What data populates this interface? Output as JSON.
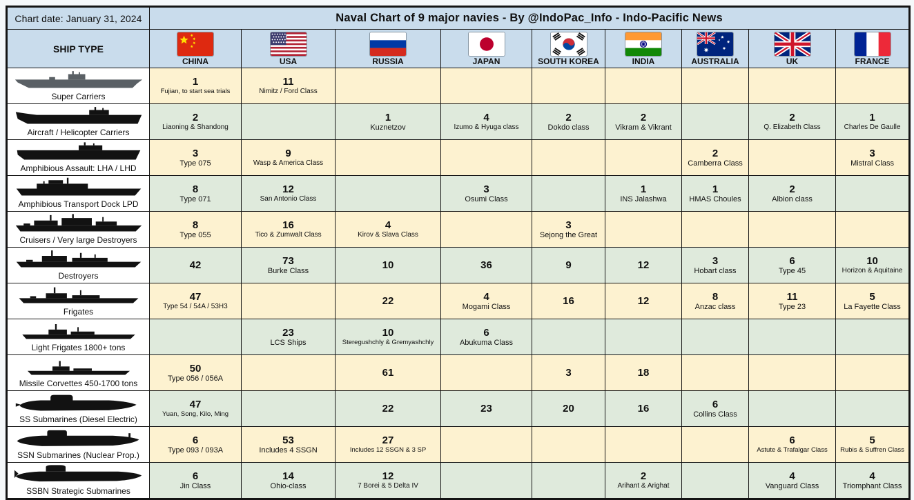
{
  "header": {
    "date_label": "Chart date: January 31, 2024",
    "title": "Naval Chart of 9 major navies - By @IndoPac_Info - Indo-Pacific News",
    "ship_type_label": "SHIP TYPE"
  },
  "countries": [
    {
      "name": "CHINA",
      "flag_icon": "china-flag-icon"
    },
    {
      "name": "USA",
      "flag_icon": "usa-flag-icon"
    },
    {
      "name": "RUSSIA",
      "flag_icon": "russia-flag-icon"
    },
    {
      "name": "JAPAN",
      "flag_icon": "japan-flag-icon"
    },
    {
      "name": "SOUTH KOREA",
      "flag_icon": "south-korea-flag-icon"
    },
    {
      "name": "INDIA",
      "flag_icon": "india-flag-icon"
    },
    {
      "name": "AUSTRALIA",
      "flag_icon": "australia-flag-icon"
    },
    {
      "name": "UK",
      "flag_icon": "uk-flag-icon"
    },
    {
      "name": "FRANCE",
      "flag_icon": "france-flag-icon"
    }
  ],
  "colors": {
    "header_bg": "#c9dcec",
    "row_yellow": "#fdf2d0",
    "row_green": "#dfeadc",
    "border": "#141414",
    "page_bg": "#f5f8fa",
    "super_carrier_gray": "#5a6065"
  },
  "chart_data": {
    "type": "table",
    "title": "Naval Chart of 9 major navies - By @IndoPac_Info - Indo-Pacific News",
    "date": "January 31, 2024",
    "columns": [
      "CHINA",
      "USA",
      "RUSSIA",
      "JAPAN",
      "SOUTH KOREA",
      "INDIA",
      "AUSTRALIA",
      "UK",
      "FRANCE"
    ],
    "rows": [
      {
        "ship_type": "Super Carriers",
        "silhouette": "super-carrier",
        "counts": [
          1,
          11,
          null,
          null,
          null,
          null,
          null,
          null,
          null
        ],
        "notes": [
          "Fujian, to start sea trials",
          "Nimitz / Ford Class",
          "",
          "",
          "",
          "",
          "",
          "",
          ""
        ]
      },
      {
        "ship_type": "Aircraft / Helicopter Carriers",
        "silhouette": "carrier",
        "counts": [
          2,
          null,
          1,
          4,
          2,
          2,
          null,
          2,
          1
        ],
        "notes": [
          "Liaoning & Shandong",
          "",
          "Kuznetzov",
          "Izumo & Hyuga class",
          "Dokdo class",
          "Vikram & Vikrant",
          "",
          "Q. Elizabeth Class",
          "Charles De Gaulle"
        ]
      },
      {
        "ship_type": "Amphibious Assault: LHA / LHD",
        "silhouette": "amphibious-assault",
        "counts": [
          3,
          9,
          null,
          null,
          null,
          null,
          2,
          null,
          3
        ],
        "notes": [
          "Type 075",
          "Wasp & America Class",
          "",
          "",
          "",
          "",
          "Camberra Class",
          "",
          "Mistral Class"
        ]
      },
      {
        "ship_type": "Amphibious Transport Dock LPD",
        "silhouette": "lpd",
        "counts": [
          8,
          12,
          null,
          3,
          null,
          1,
          1,
          2,
          null
        ],
        "notes": [
          "Type 071",
          "San Antonio Class",
          "",
          "Osumi Class",
          "",
          "INS Jalashwa",
          "HMAS Choules",
          "Albion class",
          ""
        ]
      },
      {
        "ship_type": "Cruisers / Very large Destroyers",
        "silhouette": "cruiser",
        "counts": [
          8,
          16,
          4,
          null,
          3,
          null,
          null,
          null,
          null
        ],
        "notes": [
          "Type 055",
          "Tico & Zumwalt Class",
          "Kirov & Slava Class",
          "",
          "Sejong the Great",
          "",
          "",
          "",
          ""
        ]
      },
      {
        "ship_type": "Destroyers",
        "silhouette": "destroyer",
        "counts": [
          42,
          73,
          10,
          36,
          9,
          12,
          3,
          6,
          10
        ],
        "notes": [
          "",
          "Burke Class",
          "",
          "",
          "",
          "",
          "Hobart class",
          "Type 45",
          "Horizon & Aquitaine"
        ]
      },
      {
        "ship_type": "Frigates",
        "silhouette": "frigate",
        "counts": [
          47,
          null,
          22,
          4,
          16,
          12,
          8,
          11,
          5
        ],
        "notes": [
          "Type 54 / 54A / 53H3",
          "",
          "",
          "Mogami Class",
          "",
          "",
          "Anzac class",
          "Type 23",
          "La Fayette Class"
        ]
      },
      {
        "ship_type": "Light Frigates 1800+ tons",
        "silhouette": "light-frigate",
        "counts": [
          null,
          23,
          10,
          6,
          null,
          null,
          null,
          null,
          null
        ],
        "notes": [
          "",
          "LCS Ships",
          "Steregushchly & Gremyashchly",
          "Abukuma Class",
          "",
          "",
          "",
          "",
          ""
        ]
      },
      {
        "ship_type": "Missile Corvettes  450-1700 tons",
        "silhouette": "corvette",
        "counts": [
          50,
          null,
          61,
          null,
          3,
          18,
          null,
          null,
          null
        ],
        "notes": [
          "Type 056 / 056A",
          "",
          "",
          "",
          "",
          "",
          "",
          "",
          ""
        ]
      },
      {
        "ship_type": "SS Submarines (Diesel Electric)",
        "silhouette": "ss-submarine",
        "counts": [
          47,
          null,
          22,
          23,
          20,
          16,
          6,
          null,
          null
        ],
        "notes": [
          "Yuan, Song, Kilo, Ming",
          "",
          "",
          "",
          "",
          "",
          "Collins Class",
          "",
          ""
        ]
      },
      {
        "ship_type": "SSN Submarines (Nuclear Prop.)",
        "silhouette": "ssn-submarine",
        "counts": [
          6,
          53,
          27,
          null,
          null,
          null,
          null,
          6,
          5
        ],
        "notes": [
          "Type 093 / 093A",
          "Includes 4 SSGN",
          "Includes 12 SSGN & 3 SP",
          "",
          "",
          "",
          "",
          "Astute & Trafalgar Class",
          "Rubis & Suffren Class"
        ]
      },
      {
        "ship_type": "SSBN Strategic Submarines",
        "silhouette": "ssbn-submarine",
        "counts": [
          6,
          14,
          12,
          null,
          null,
          2,
          null,
          4,
          4
        ],
        "notes": [
          "Jin Class",
          "Ohio-class",
          "7 Borei & 5 Delta IV",
          "",
          "",
          "Arihant & Arighat",
          "",
          "Vanguard Class",
          "Triomphant Class"
        ]
      }
    ]
  }
}
